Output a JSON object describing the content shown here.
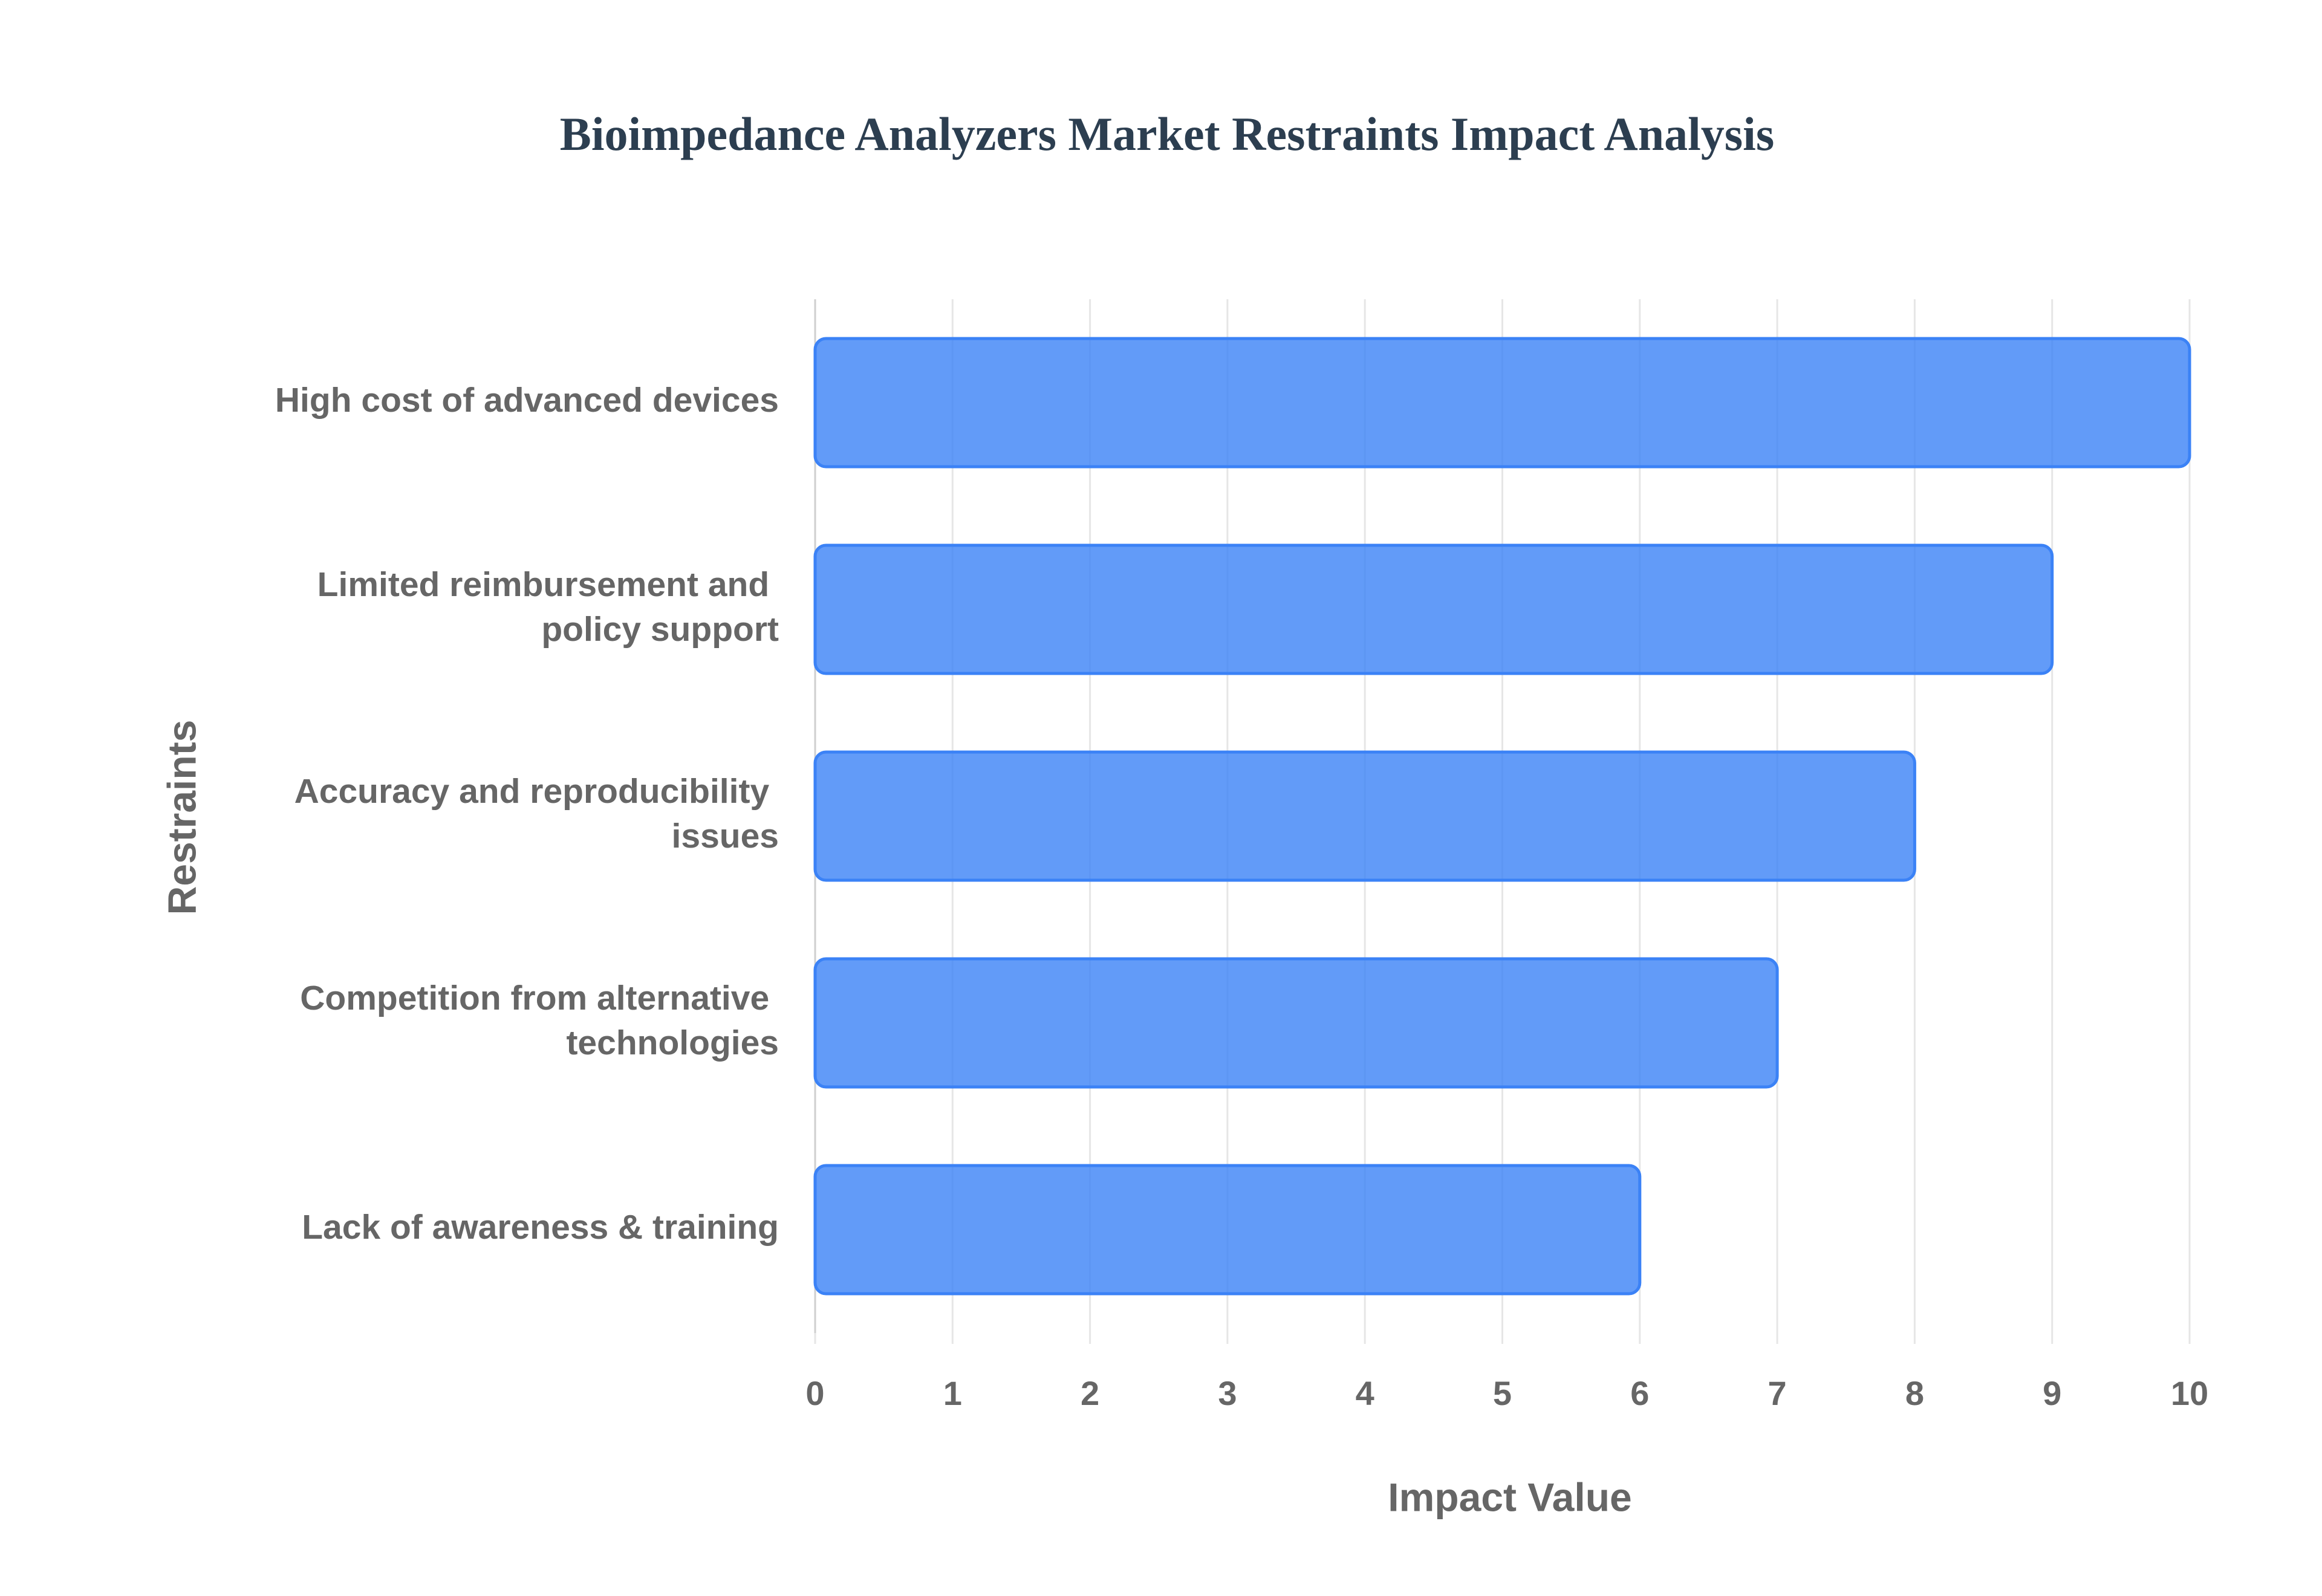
{
  "chart_data": {
    "type": "bar",
    "orientation": "horizontal",
    "title": "Bioimpedance Analyzers Market Restraints Impact Analysis",
    "categories": [
      "High cost of advanced devices",
      "Limited reimbursement and policy support",
      "Accuracy and reproducibility issues",
      "Competition from alternative technologies",
      "Lack of awareness & training"
    ],
    "values": [
      10,
      9,
      8,
      7,
      6
    ],
    "color": "#3b82f6",
    "xlabel": "Impact Value",
    "ylabel": "Restraints",
    "xlim": [
      0,
      10
    ],
    "xticks": [
      0,
      1,
      2,
      3,
      4,
      5,
      6,
      7,
      8,
      9,
      10
    ],
    "grid": true
  }
}
